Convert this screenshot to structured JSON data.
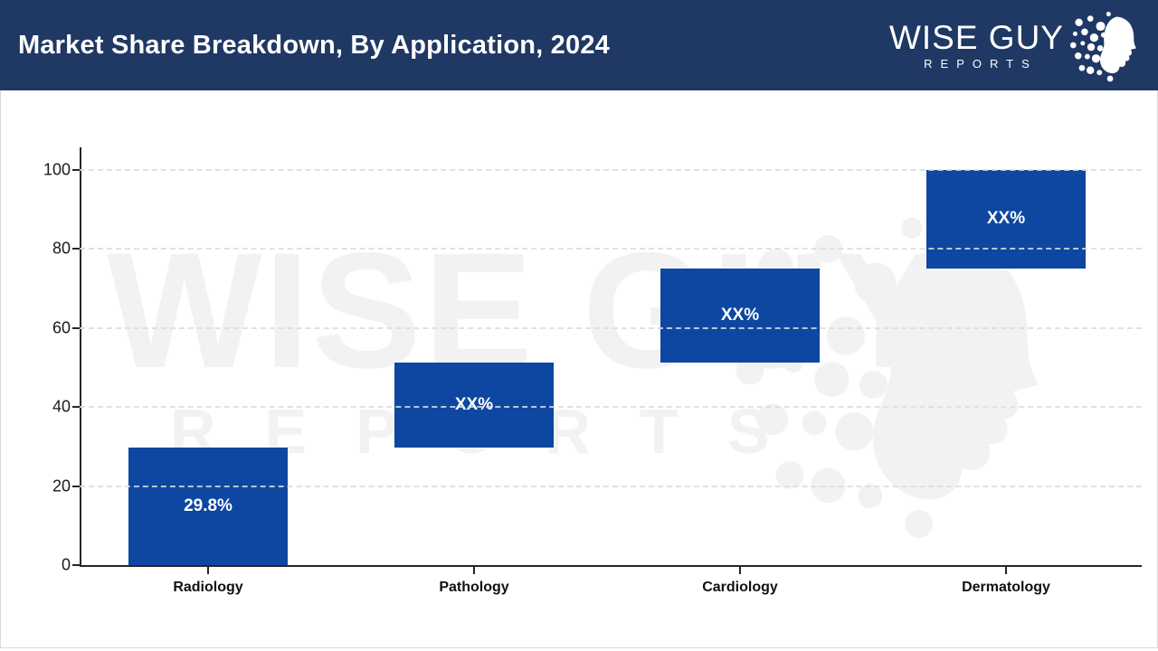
{
  "header": {
    "title": "Market Share Breakdown, By Application, 2024",
    "logo": {
      "line1": "WISE GUY",
      "line2": "REPORTS"
    }
  },
  "watermark": {
    "line1": "WISE GUY",
    "line2": "REPORTS"
  },
  "colors": {
    "header_bg": "#1f3864",
    "bar": "#0d47a1",
    "grid": "#dcdcdc",
    "axis": "#262626",
    "bar_label": "#ffffff",
    "watermark": "#f2f2f2",
    "page_border": "#d9d9d9"
  },
  "chart_data": {
    "type": "bar",
    "subtype": "waterfall-floating-bars",
    "title": "Market Share Breakdown, By Application, 2024",
    "xlabel": "",
    "ylabel": "",
    "ylim": [
      0,
      105
    ],
    "yticks": [
      0,
      20,
      40,
      60,
      80,
      100
    ],
    "grid": "horizontal-dashed",
    "legend": "none",
    "categories": [
      "Radiology",
      "Pathology",
      "Cardiology",
      "Dermatology"
    ],
    "segments": [
      {
        "category": "Radiology",
        "start": 0,
        "end": 29.8,
        "label": "29.8%"
      },
      {
        "category": "Pathology",
        "start": 29.8,
        "end": 51.3,
        "label": "XX%"
      },
      {
        "category": "Cardiology",
        "start": 51.3,
        "end": 75.1,
        "label": "XX%"
      },
      {
        "category": "Dermatology",
        "start": 75.1,
        "end": 100,
        "label": "XX%"
      }
    ]
  }
}
